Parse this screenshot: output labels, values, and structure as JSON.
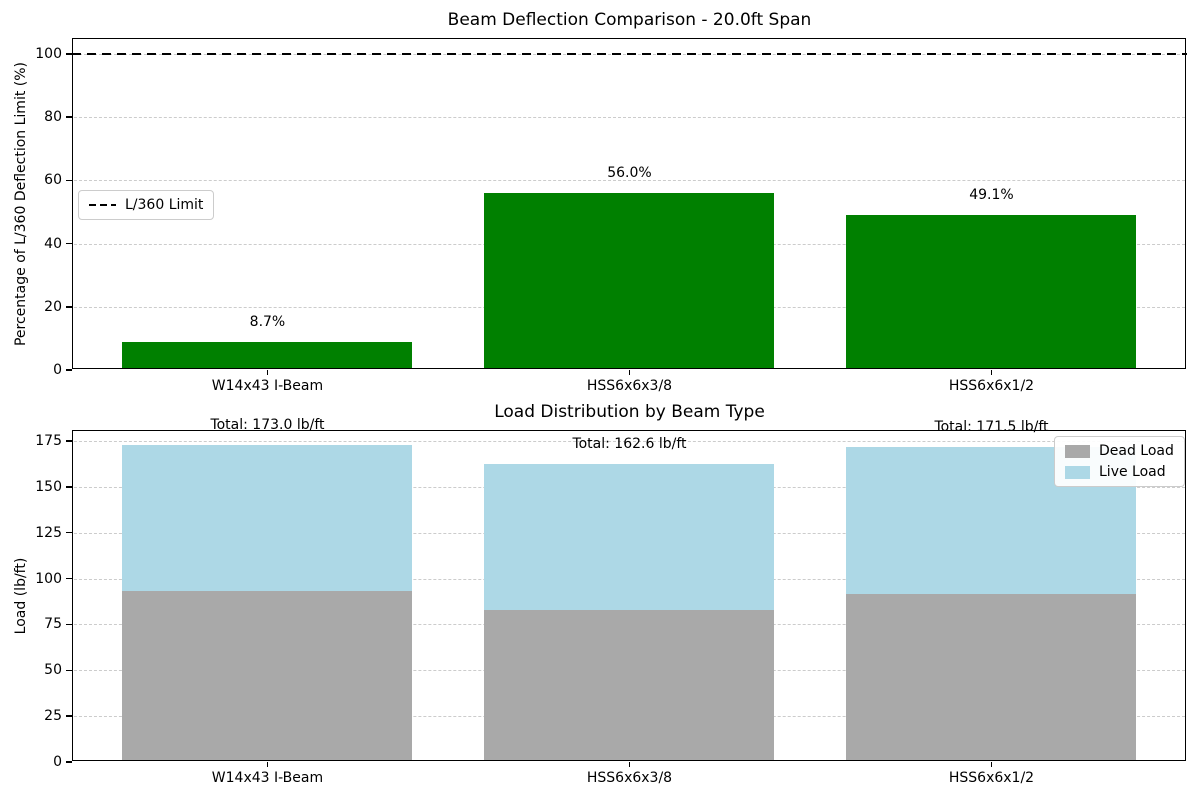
{
  "chart_data": [
    {
      "type": "bar",
      "title": "Beam Deflection Comparison - 20.0ft Span",
      "ylabel": "Percentage of L/360 Deflection Limit (%)",
      "xlabel": "",
      "categories": [
        "W14x43 I-Beam",
        "HSS6x6x3/8",
        "HSS6x6x1/2"
      ],
      "values": [
        8.7,
        56.0,
        49.1
      ],
      "bar_labels": [
        "8.7%",
        "56.0%",
        "49.1%"
      ],
      "bar_color": "#008000",
      "ylim": [
        0,
        105
      ],
      "yticks": [
        0,
        20,
        40,
        60,
        80,
        100
      ],
      "grid": true,
      "ref_line": {
        "value": 100,
        "color": "#000000",
        "style": "dashed"
      },
      "legend": {
        "position": "center-left",
        "items": [
          {
            "label": "L/360 Limit",
            "swatch": "dashed-line",
            "color": "#000000"
          }
        ]
      }
    },
    {
      "type": "stacked-bar",
      "title": "Load Distribution by Beam Type",
      "ylabel": "Load (lb/ft)",
      "xlabel": "",
      "categories": [
        "W14x43 I-Beam",
        "HSS6x6x3/8",
        "HSS6x6x1/2"
      ],
      "series": [
        {
          "name": "Dead Load",
          "color": "#a9a9a9",
          "values": [
            93.0,
            82.6,
            91.5
          ]
        },
        {
          "name": "Live Load",
          "color": "#add8e6",
          "values": [
            80.0,
            80.0,
            80.0
          ]
        }
      ],
      "totals": [
        173.0,
        162.6,
        171.5
      ],
      "total_labels": [
        "Total: 173.0 lb/ft",
        "Total: 162.6 lb/ft",
        "Total: 171.5 lb/ft"
      ],
      "ylim": [
        0,
        181
      ],
      "yticks": [
        0,
        25,
        50,
        75,
        100,
        125,
        150,
        175
      ],
      "grid": true,
      "legend": {
        "position": "top-right",
        "items": [
          {
            "label": "Dead Load",
            "swatch": "patch",
            "color": "#a9a9a9"
          },
          {
            "label": "Live Load",
            "swatch": "patch",
            "color": "#add8e6"
          }
        ]
      }
    }
  ]
}
